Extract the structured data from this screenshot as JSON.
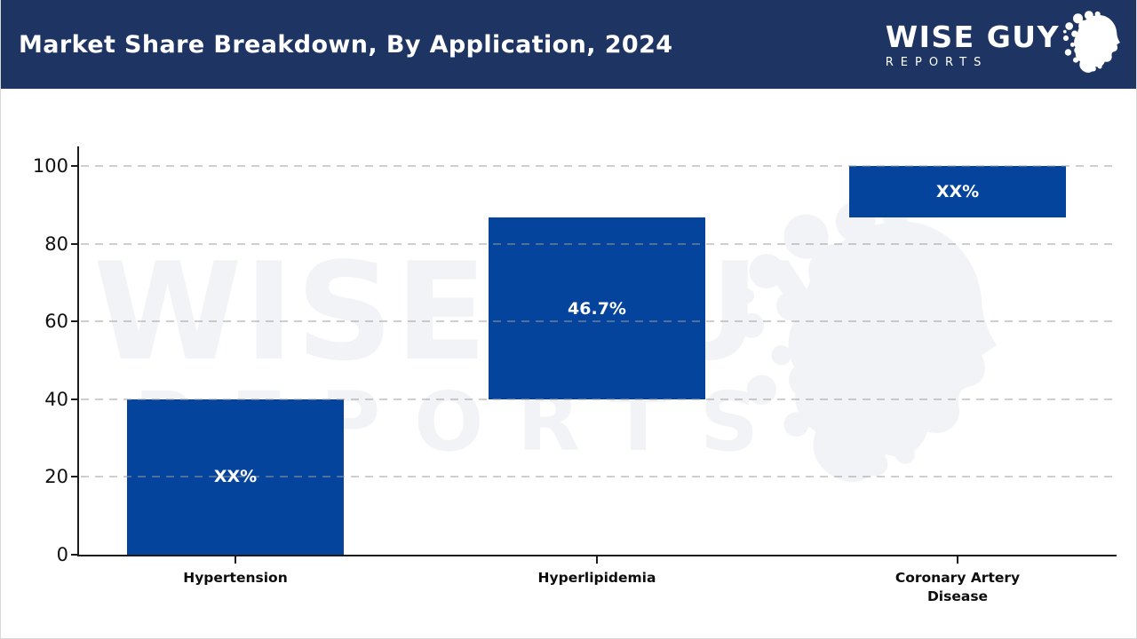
{
  "header": {
    "title": "Market Share Breakdown, By Application, 2024",
    "logo": {
      "wordmark": "WISE GUY",
      "subtext": "REPORTS"
    }
  },
  "watermark": {
    "wordmark": "WISE GUY",
    "subtext": "REPORTS"
  },
  "chart_data": {
    "type": "bar",
    "variant": "waterfall",
    "title": "Market Share Breakdown, By Application, 2024",
    "categories": [
      "Hypertension",
      "Hyperlipidemia",
      "Coronary Artery Disease"
    ],
    "segments": [
      {
        "category": "Hypertension",
        "start": 0,
        "end": 40,
        "label": "XX%"
      },
      {
        "category": "Hyperlipidemia",
        "start": 40,
        "end": 86.7,
        "label": "46.7%"
      },
      {
        "category": "Coronary Artery Disease",
        "start": 86.7,
        "end": 100,
        "label": "XX%"
      }
    ],
    "ylim": [
      0,
      100
    ],
    "yticks": [
      0,
      20,
      40,
      60,
      80,
      100
    ],
    "grid": "horizontal-dashed",
    "legend": "none",
    "colors": {
      "bar": "#04449c",
      "value_label": "#ffffff",
      "axis": "#1a1a1a",
      "tick_label": "#111111",
      "header_bg": "#1e3563",
      "title_text": "#ffffff",
      "watermark": "#f2f3f6"
    }
  }
}
